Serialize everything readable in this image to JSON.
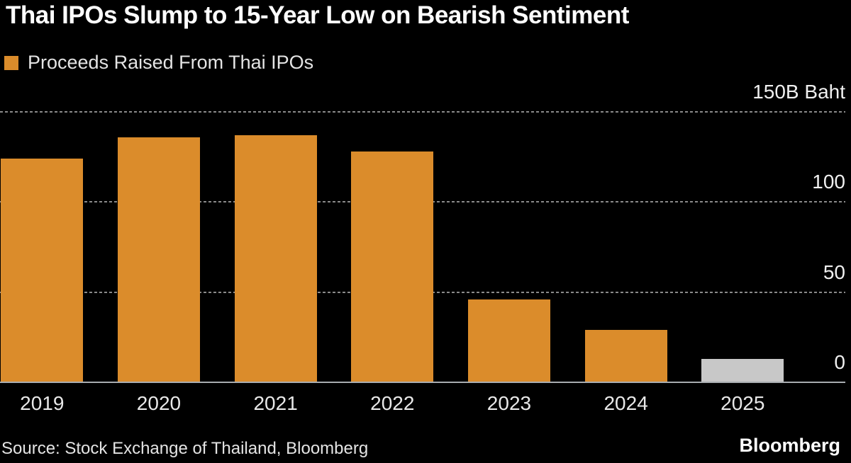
{
  "header": {
    "title": "Thai IPOs Slump to 15-Year Low on Bearish Sentiment",
    "legend_label": "Proceeds Raised From Thai IPOs"
  },
  "footer": {
    "source": "Source: Stock Exchange of Thailand, Bloomberg",
    "logo": "Bloomberg"
  },
  "colors": {
    "background": "#000000",
    "bar_orange": "#DB8C2B",
    "bar_gray": "#C8C8C8",
    "gridline": "#8A8A8A",
    "axisline": "#A8ACB0",
    "title_text": "#FFFFFF",
    "body_text": "#E4E4E4"
  },
  "chart_data": {
    "type": "bar",
    "title": "Thai IPOs Slump to 15-Year Low on Bearish Sentiment",
    "legend": [
      "Proceeds Raised From Thai IPOs"
    ],
    "legend_position": "top-left",
    "categories": [
      "2019",
      "2020",
      "2021",
      "2022",
      "2023",
      "2024",
      "2025"
    ],
    "values": [
      124,
      136,
      137,
      128,
      46,
      29,
      13
    ],
    "bar_colors": [
      "#DB8C2B",
      "#DB8C2B",
      "#DB8C2B",
      "#DB8C2B",
      "#DB8C2B",
      "#DB8C2B",
      "#C8C8C8"
    ],
    "xlabel": "",
    "ylabel": "B Baht",
    "ylim": [
      0,
      150
    ],
    "grid": true,
    "yticks": [
      {
        "value": 150,
        "label": "150B Baht"
      },
      {
        "value": 100,
        "label": "100"
      },
      {
        "value": 50,
        "label": "50"
      },
      {
        "value": 0,
        "label": "0"
      }
    ]
  }
}
